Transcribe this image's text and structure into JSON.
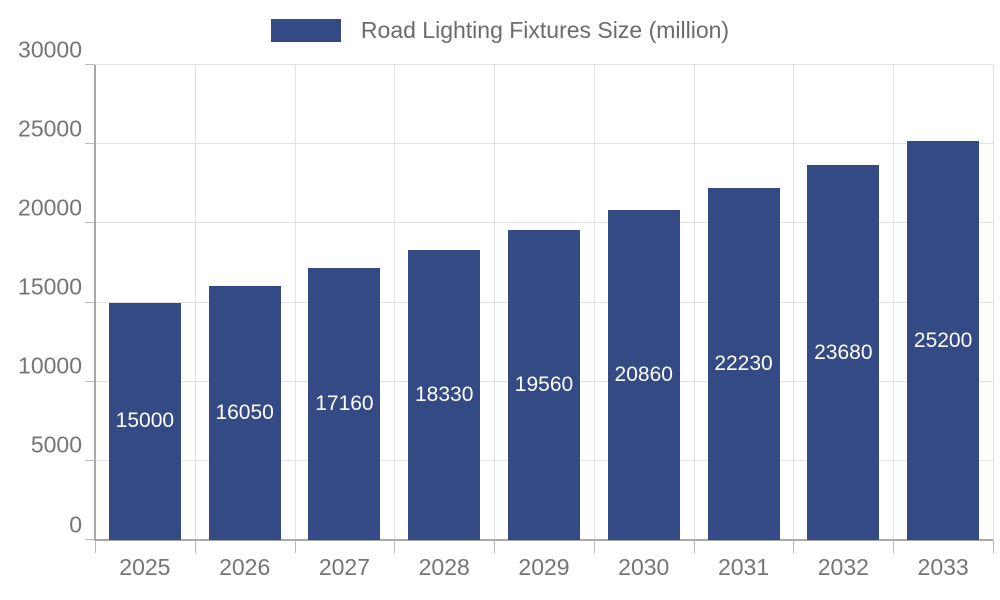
{
  "legend": {
    "label": "Road Lighting Fixtures Size (million)"
  },
  "chart_data": {
    "type": "bar",
    "title": "Road Lighting Fixtures Size (million)",
    "categories": [
      "2025",
      "2026",
      "2027",
      "2028",
      "2029",
      "2030",
      "2031",
      "2032",
      "2033"
    ],
    "values": [
      15000,
      16050,
      17160,
      18330,
      19560,
      20860,
      22230,
      23680,
      25200
    ],
    "series": [
      {
        "name": "Road Lighting Fixtures Size (million)",
        "values": [
          15000,
          16050,
          17160,
          18330,
          19560,
          20860,
          22230,
          23680,
          25200
        ]
      }
    ],
    "xlabel": "",
    "ylabel": "",
    "ylim": [
      0,
      30000
    ],
    "ytick_step": 5000,
    "grid": true,
    "legend_position": "top-center",
    "value_labels": "inside-center",
    "colors": {
      "bar": "#344a84",
      "value_label": "#ffffff",
      "axis_text": "#757575",
      "legend_text": "#6b6b6b",
      "gridline": "#e2e2e2",
      "axis_line": "#a8a8a8",
      "tick": "#bbbbbb",
      "background": "#ffffff"
    }
  }
}
